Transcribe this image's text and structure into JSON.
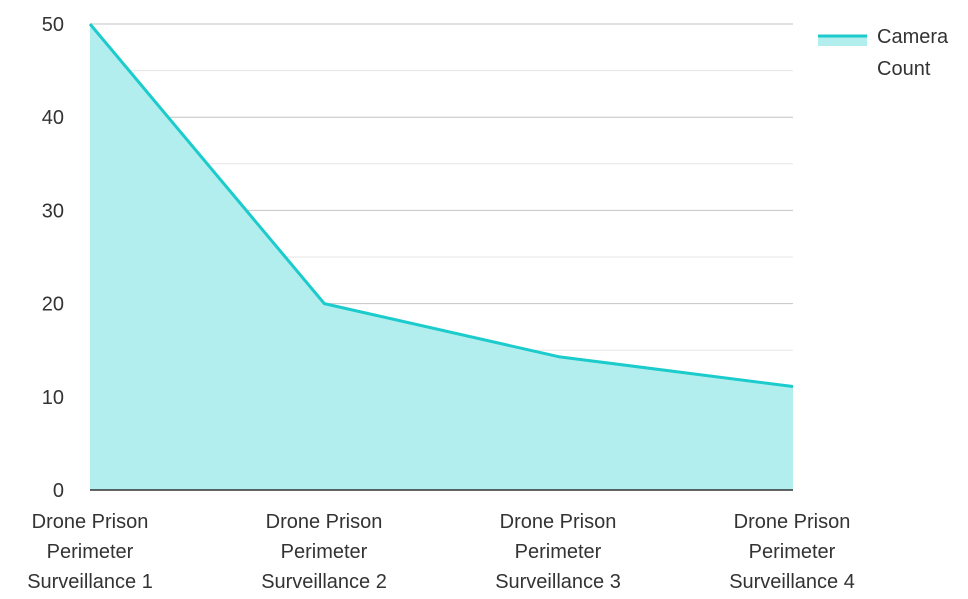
{
  "chart_data": {
    "type": "area",
    "title": "",
    "xlabel": "",
    "ylabel": "",
    "categories": [
      [
        "Drone Prison",
        "Perimeter",
        "Surveillance 1"
      ],
      [
        "Drone Prison",
        "Perimeter",
        "Surveillance 2"
      ],
      [
        "Drone Prison",
        "Perimeter",
        "Surveillance 3"
      ],
      [
        "Drone Prison",
        "Perimeter",
        "Surveillance 4"
      ]
    ],
    "series": [
      {
        "name": "Camera Count",
        "values": [
          50,
          20,
          14.3,
          11.1
        ],
        "line_color": "#1ccbcb",
        "fill_color": "#b3eeee"
      }
    ],
    "ylim": [
      0,
      50
    ],
    "yticks": [
      0,
      10,
      20,
      30,
      40,
      50
    ],
    "grid": true,
    "legend": {
      "position": "top-right",
      "lines": [
        "Camera",
        "Count"
      ]
    }
  }
}
